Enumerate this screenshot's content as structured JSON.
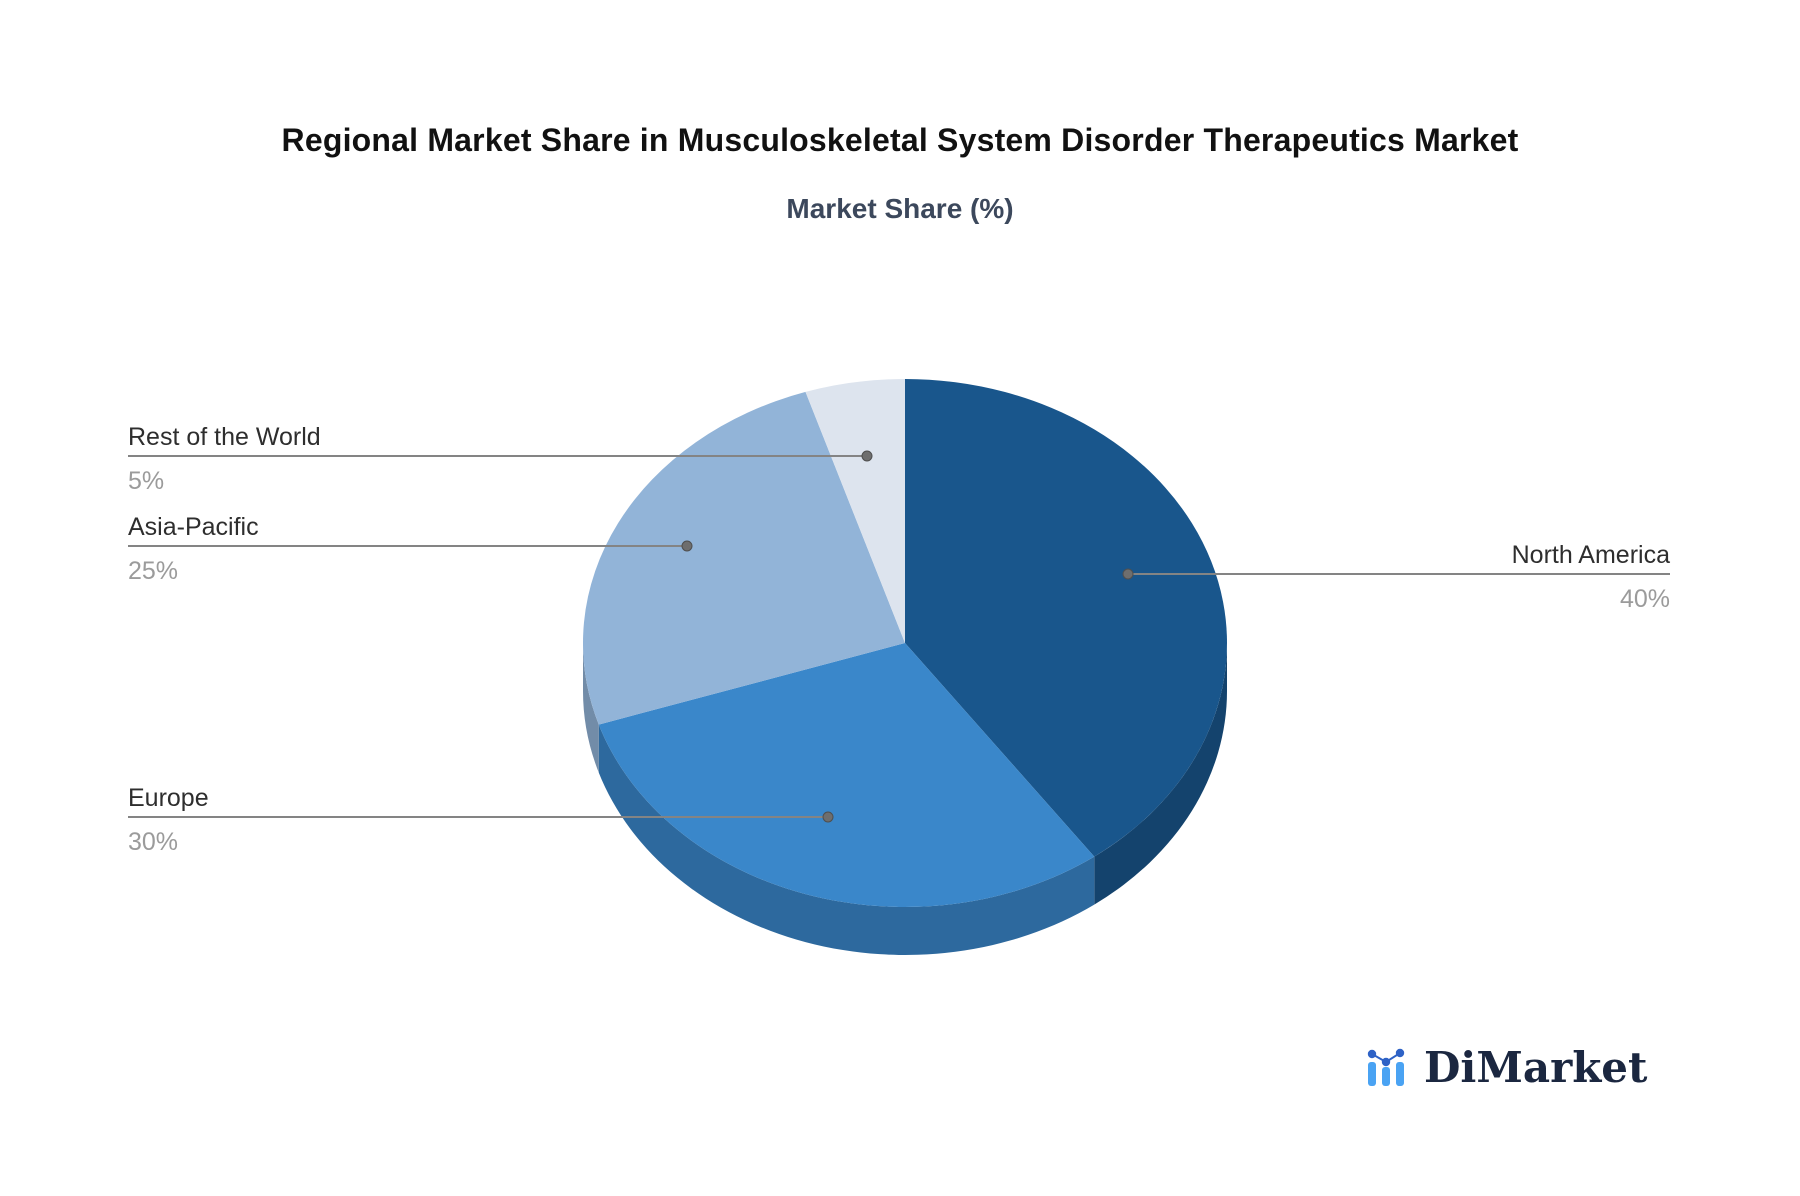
{
  "header": {
    "title": "Regional Market Share in Musculoskeletal System Disorder Therapeutics Market",
    "subtitle": "Market Share (%)"
  },
  "chart_data": {
    "type": "pie",
    "style": "3d",
    "title": "Regional Market Share in Musculoskeletal System Disorder Therapeutics Market",
    "subtitle": "Market Share (%)",
    "unit": "%",
    "total": 100,
    "start_angle_deg": 0,
    "direction": "clockwise",
    "segments": [
      {
        "label": "North America",
        "value": 40,
        "display_value": "40%",
        "color": "#19568C"
      },
      {
        "label": "Europe",
        "value": 30,
        "display_value": "30%",
        "color": "#3A87CA"
      },
      {
        "label": "Asia-Pacific",
        "value": 25,
        "display_value": "25%",
        "color": "#92B4D8"
      },
      {
        "label": "Rest of the World",
        "value": 5,
        "display_value": "5%",
        "color": "#DDE4EE"
      }
    ],
    "label_style": "leader-lines",
    "legend_position": "none"
  },
  "branding": {
    "name": "DiMarket",
    "icon": "bar-line-chart-icon",
    "text_color": "#1B2740",
    "bar_color": "#4AA3F3",
    "dot_color": "#2E62C6"
  },
  "style": {
    "background": "#FFFFFF",
    "title_color": "#111111",
    "subtitle_color": "#3C485C",
    "label_color": "#2E2E2E",
    "value_color": "#9B9B9B",
    "leader_line_color": "#848484",
    "leader_dot_color": "#6E6E6E"
  }
}
